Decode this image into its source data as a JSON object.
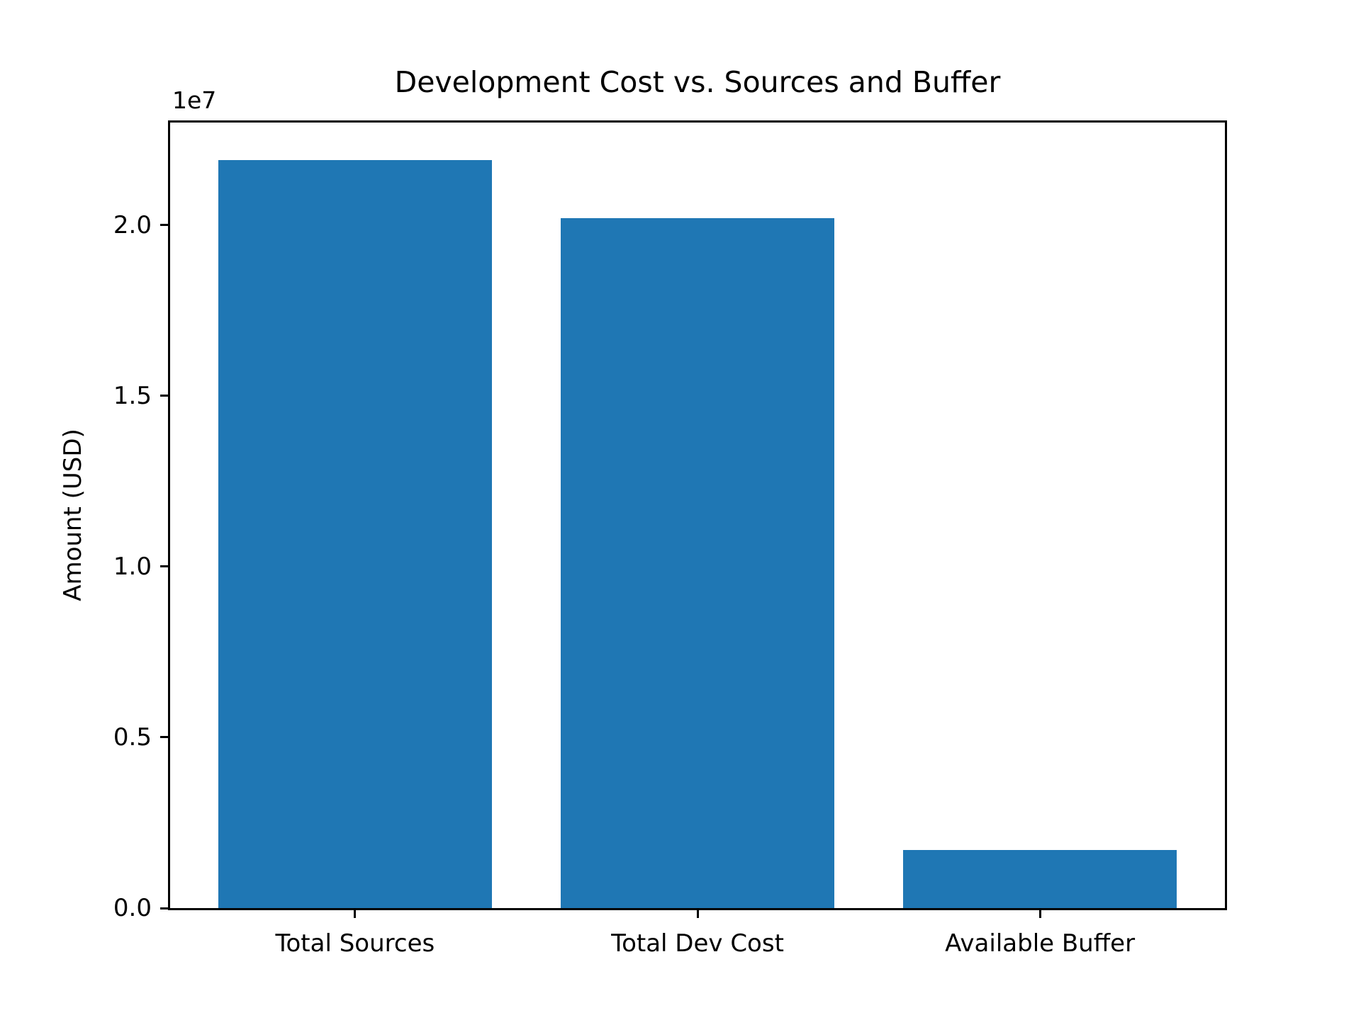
{
  "chart_data": {
    "type": "bar",
    "title": "Development Cost vs. Sources and Buffer",
    "categories": [
      "Total Sources",
      "Total Dev Cost",
      "Available Buffer"
    ],
    "values": [
      21900000,
      20200000,
      1700000
    ],
    "xlabel": "",
    "ylabel": "Amount (USD)",
    "y_offset_label": "1e7",
    "ylim": [
      0,
      23000000
    ],
    "xlim": [
      -0.54,
      2.54
    ],
    "yticks": [
      0,
      5000000,
      10000000,
      15000000,
      20000000
    ],
    "ytick_labels": [
      "0.0",
      "0.5",
      "1.0",
      "1.5",
      "2.0"
    ],
    "bar_width_fraction": 0.8,
    "bar_color": "#1f77b4",
    "axis_color": "#000000",
    "grid": false,
    "legend": null
  }
}
